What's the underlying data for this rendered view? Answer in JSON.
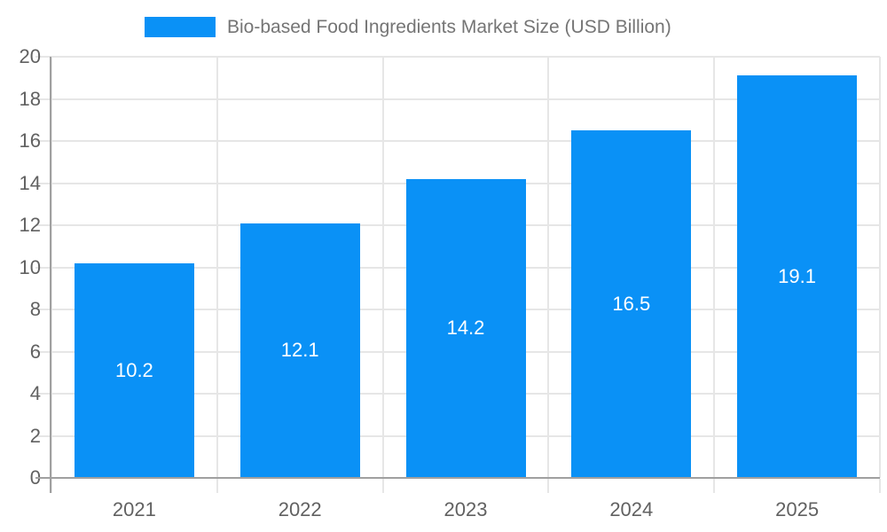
{
  "chart_data": {
    "type": "bar",
    "title": "Bio-based Food Ingredients Market Size (USD Billion)",
    "categories": [
      "2021",
      "2022",
      "2023",
      "2024",
      "2025"
    ],
    "values": [
      10.2,
      12.1,
      14.2,
      16.5,
      19.1
    ],
    "value_labels": [
      "10.2",
      "12.1",
      "14.2",
      "16.5",
      "19.1"
    ],
    "xlabel": "",
    "ylabel": "",
    "ylim": [
      0,
      20
    ],
    "ytick_step": 2,
    "yticks": [
      "0",
      "2",
      "4",
      "6",
      "8",
      "10",
      "12",
      "14",
      "16",
      "18",
      "20"
    ],
    "grid": true,
    "legend_position": "top",
    "colors": {
      "bar": "#0a91f6",
      "grid": "#e6e6e6",
      "axis": "#a0a0a0",
      "tick_label": "#616161",
      "legend_text": "#757575",
      "value_label": "#ffffff",
      "background": "#ffffff"
    }
  }
}
